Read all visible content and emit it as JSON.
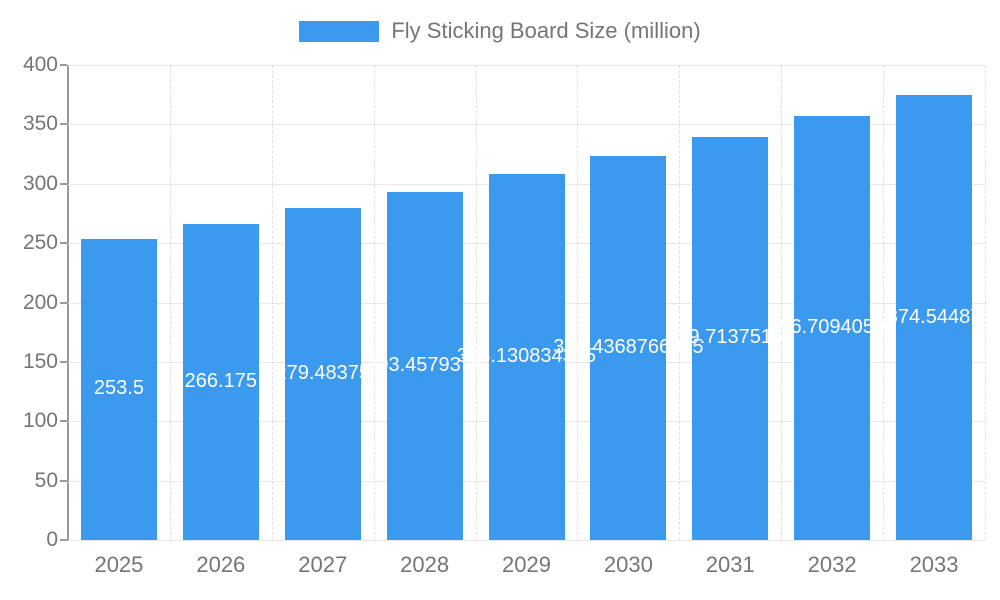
{
  "legend": {
    "label": "Fly Sticking Board Size (million)",
    "swatch_color": "#3b99ee"
  },
  "chart_data": {
    "type": "bar",
    "title": "Fly Sticking Board Size (million)",
    "categories": [
      "2025",
      "2026",
      "2027",
      "2028",
      "2029",
      "2030",
      "2031",
      "2032",
      "2033"
    ],
    "values": [
      253.5,
      266.175,
      279.48375,
      293.4579375,
      308.130834375,
      323.4368766875,
      339.71375159,
      356.70940595,
      374.54487
    ],
    "value_labels": [
      "253.5",
      "266.175",
      "279.48375",
      "293.4579375",
      "308.130834375",
      "323.4368766875",
      "339.71375159",
      "356.70940595",
      "374.54487"
    ],
    "xlabel": "",
    "ylabel": "",
    "ylim": [
      0,
      400
    ],
    "ytick_step": 50,
    "yticks": [
      "0",
      "50",
      "100",
      "150",
      "200",
      "250",
      "300",
      "350",
      "400"
    ],
    "grid": true,
    "legend_position": "top",
    "bar_color": "#3b99ee",
    "value_label_color": "#ffffff",
    "axis_text_color": "#757575"
  }
}
